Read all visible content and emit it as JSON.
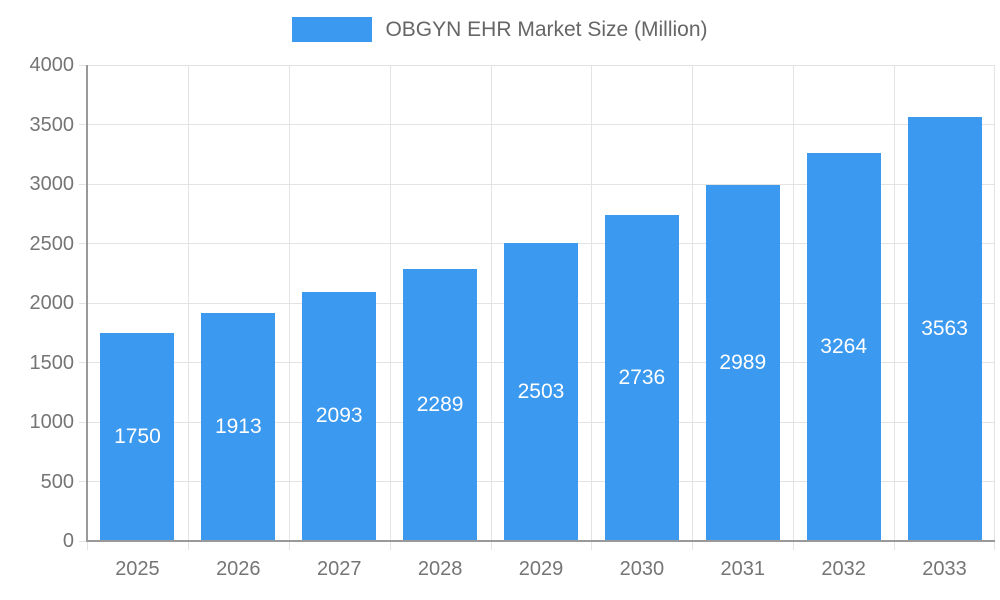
{
  "legend": {
    "label": "OBGYN EHR Market Size (Million)"
  },
  "colors": {
    "bar": "#3b99ef",
    "bar_label": "#ffffff",
    "axis_line": "#999999",
    "gridline": "#e3e3e3",
    "tick_label": "#757575",
    "legend_text": "#666666",
    "background": "#ffffff"
  },
  "chart_data": {
    "type": "bar",
    "title": "OBGYN EHR Market Size (Million)",
    "categories": [
      "2025",
      "2026",
      "2027",
      "2028",
      "2029",
      "2030",
      "2031",
      "2032",
      "2033"
    ],
    "values": [
      1750,
      1913,
      2093,
      2289,
      2503,
      2736,
      2989,
      3264,
      3563
    ],
    "series_name": "OBGYN EHR Market Size (Million)",
    "xlabel": "",
    "ylabel": "",
    "ylim": [
      0,
      4000
    ],
    "yticks": [
      0,
      500,
      1000,
      1500,
      2000,
      2500,
      3000,
      3500,
      4000
    ],
    "grid": true,
    "legend_position": "top",
    "value_labels": "inside-center",
    "bar_band_fraction": 0.733
  }
}
